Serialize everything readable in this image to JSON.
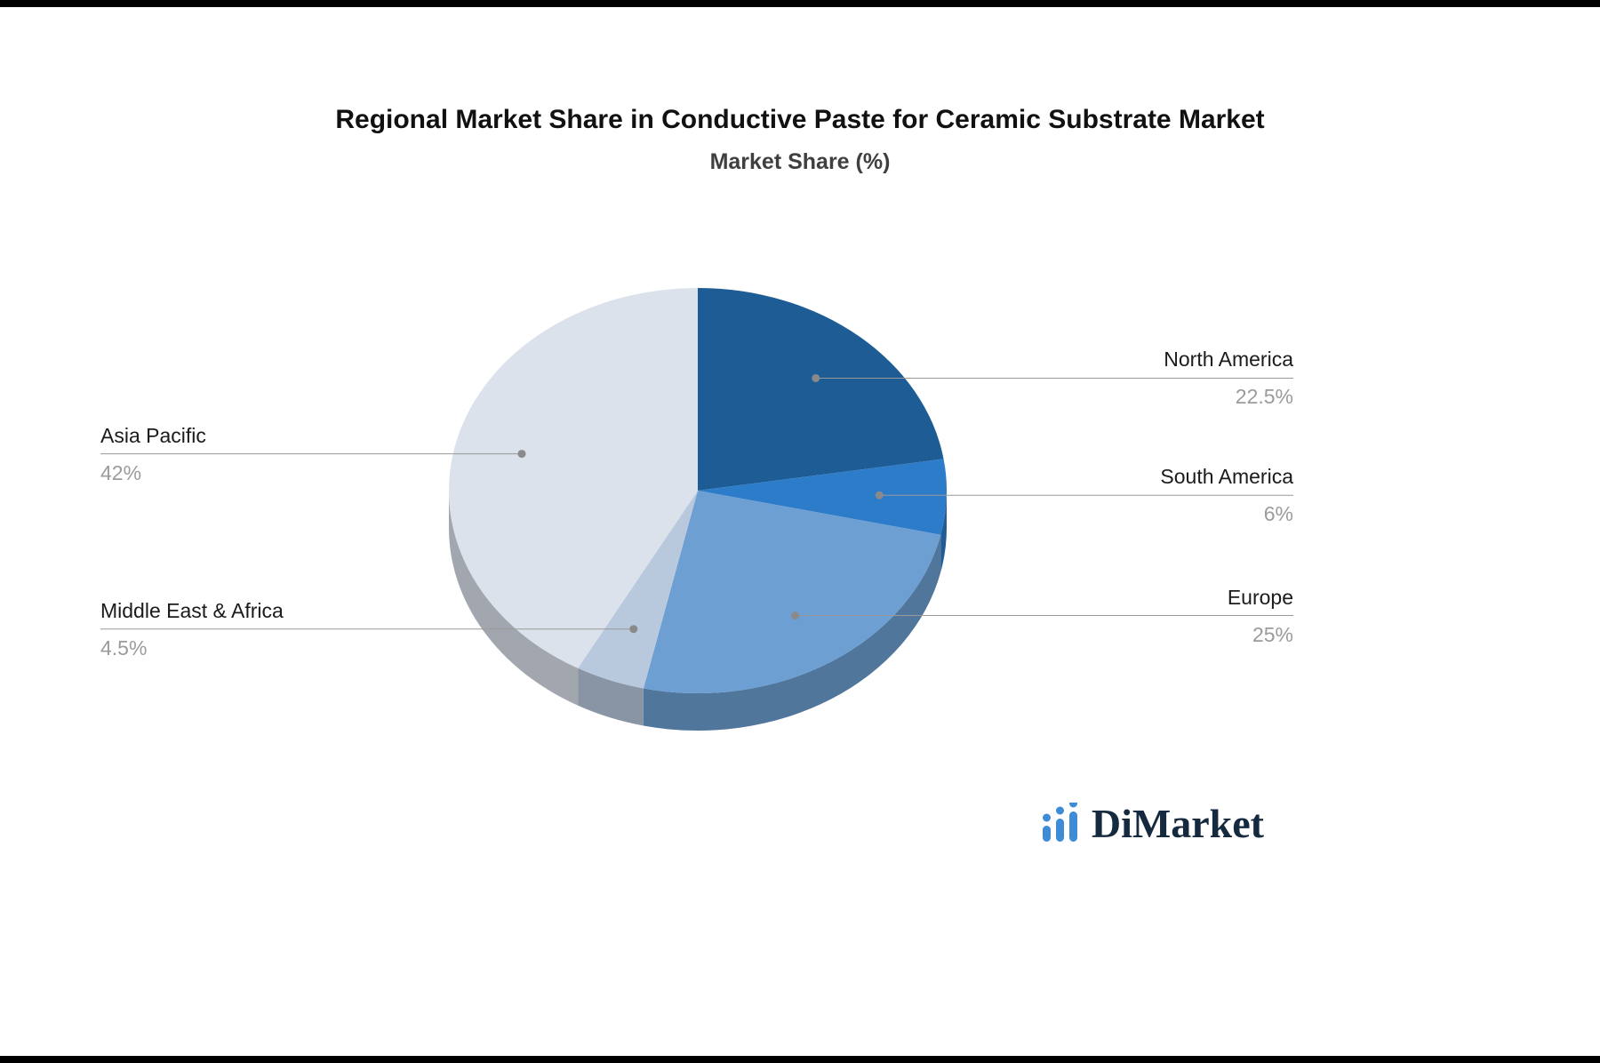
{
  "chart_data": {
    "type": "pie",
    "title": "Regional Market Share in Conductive Paste for Ceramic Substrate Market",
    "subtitle": "Market Share (%)",
    "unit": "%",
    "direction": "clockwise",
    "start_angle_deg": 0,
    "legend_position": "none",
    "label_style": "callout-lines",
    "style_3d": true,
    "slices": [
      {
        "label": "North America",
        "value": 22.5,
        "display": "22.5%",
        "color": "#1e5c96"
      },
      {
        "label": "South America",
        "value": 6,
        "display": "6%",
        "color": "#2d7cc9"
      },
      {
        "label": "Europe",
        "value": 25,
        "display": "25%",
        "color": "#6d9fd3"
      },
      {
        "label": "Middle East & Africa",
        "value": 4.5,
        "display": "4.5%",
        "color": "#b9c9dd"
      },
      {
        "label": "Asia Pacific",
        "value": 42,
        "display": "42%",
        "color": "#dbe2ec"
      }
    ],
    "callout_line_color": "#999999",
    "callout_dot_color": "#8a8a8a"
  },
  "branding": {
    "logo_text": "DiMarket",
    "logo_icon": "bar-chart-icon",
    "logo_text_color": "#15293f",
    "logo_icon_color": "#3f8cd6"
  }
}
